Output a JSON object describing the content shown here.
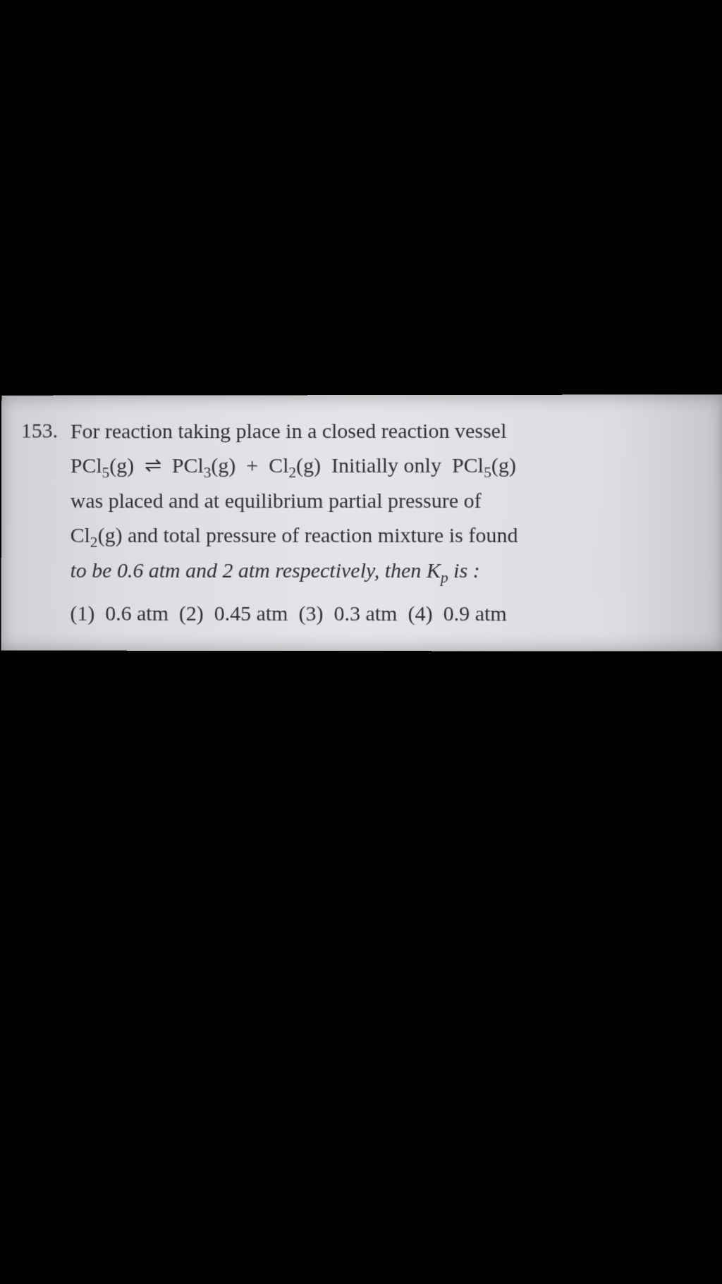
{
  "background_color": "#000000",
  "paper": {
    "bg_gradient_start": "#cfd0d4",
    "bg_gradient_mid": "#e4e5e8",
    "bg_gradient_end": "#c5c6ca",
    "text_color": "#2f3033",
    "font_size_pt": 30
  },
  "question": {
    "number": "153.",
    "stem_line1": "For reaction taking place in a closed reaction vessel",
    "equation_plain": "PCl5(g) ⇌ PCl3(g) + Cl2(g) Initially only PCl5(g)",
    "equation": {
      "lhs": "PCl",
      "lhs_sub": "5",
      "lhs_state": "(g)",
      "arrow": "⇌",
      "rhs1": "PCl",
      "rhs1_sub": "3",
      "rhs1_state": "(g)",
      "plus": "+",
      "rhs2": "Cl",
      "rhs2_sub": "2",
      "rhs2_state": "(g)",
      "tail1": "Initially only",
      "tail_species": "PCl",
      "tail_sub": "5",
      "tail_state": "(g)"
    },
    "stem_line3": "was placed and at equilibrium partial pressure of",
    "stem_line4_pre": "Cl",
    "stem_line4_sub": "2",
    "stem_line4_post": "(g) and total pressure of reaction mixture is found",
    "stem_line5_pre": "to be 0.6 atm and 2 atm respectively, then K",
    "stem_line5_sub": "p",
    "stem_line5_post": " is :",
    "options": {
      "opt1_label": "(1)",
      "opt1_value": "0.6 atm",
      "opt2_label": "(2)",
      "opt2_value": "0.45 atm",
      "opt3_label": "(3)",
      "opt3_value": "0.3 atm",
      "opt4_label": "(4)",
      "opt4_value": "0.9 atm"
    }
  }
}
